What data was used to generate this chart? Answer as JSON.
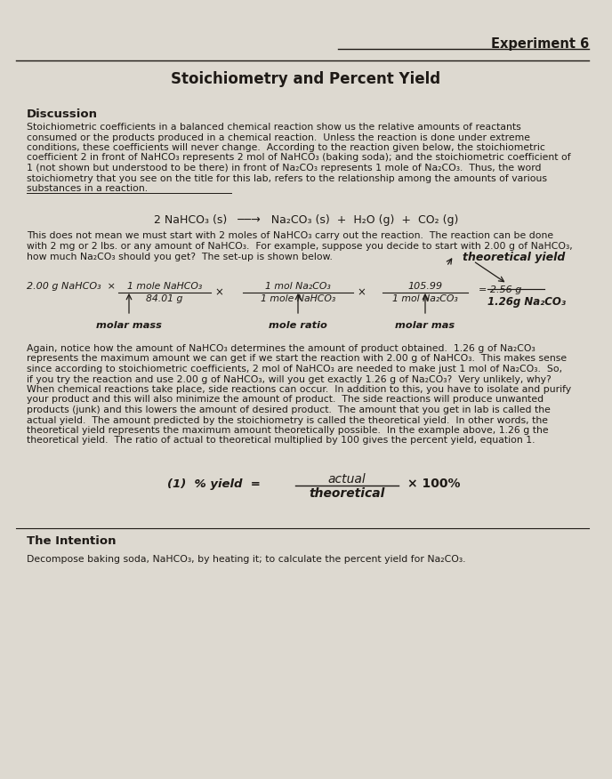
{
  "bg_color": "#ddd9d0",
  "text_color": "#1e1a16",
  "title1": "Experiment 6",
  "title2": "Stoichiometry and Percent Yield",
  "section1": "Discussion",
  "equation": "2 NaHCO₃ (s)   ──→   Na₂CO₃ (s)  +  H₂O (g)  +  CO₂ (g)",
  "theoretical_yield_label": "theoretical yield",
  "calc_result_struck": "2.56 g",
  "calc_result2": "1.26g Na₂CO₃",
  "label1": "molar mass",
  "label2": "mole ratio",
  "label3": "molar mas",
  "formula_label": "(1)  % yield  =",
  "formula_num": "actual",
  "formula_den": "theoretical",
  "formula_end": "× 100%",
  "section2": "The Intention",
  "para4": "Decompose baking soda, NaHCO₃, by heating it; to calculate the percent yield for Na₂CO₃."
}
